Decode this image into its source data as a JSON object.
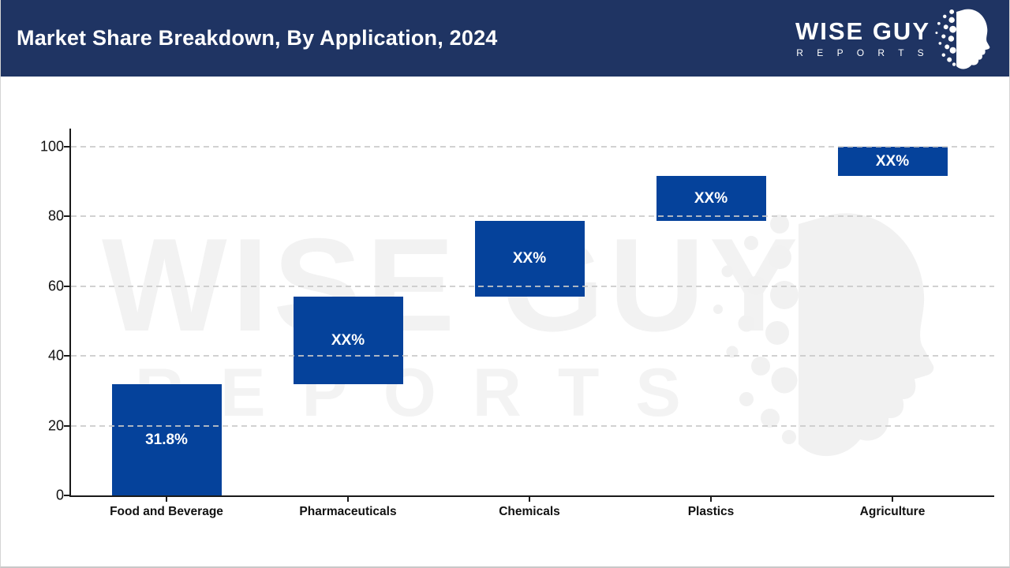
{
  "header": {
    "title": "Market Share Breakdown, By Application, 2024",
    "logo": {
      "line1": "WISE GUY",
      "line2": "R E P O R T S"
    }
  },
  "watermark": {
    "line1": "WISE GUY",
    "line2": "REPORTS"
  },
  "colors": {
    "header_bg": "#1F3463",
    "bar": "#05429B",
    "gridline": "#c9c9c9",
    "axis": "#1a1a1a",
    "bar_label": "#ffffff",
    "watermark": "#f2f2f2"
  },
  "chart_data": {
    "type": "bar",
    "subtype": "waterfall-floating-bars",
    "title": "Market Share Breakdown, By Application, 2024",
    "categories": [
      "Food and Beverage",
      "Pharmaceuticals",
      "Chemicals",
      "Plastics",
      "Agriculture"
    ],
    "series": [
      {
        "name": "Market share (cumulative segments, %)",
        "segments": [
          {
            "category": "Food and Beverage",
            "start": 0,
            "end": 31.8,
            "label": "31.8%"
          },
          {
            "category": "Pharmaceuticals",
            "start": 31.8,
            "end": 57.0,
            "label": "XX%"
          },
          {
            "category": "Chemicals",
            "start": 57.0,
            "end": 78.7,
            "label": "XX%"
          },
          {
            "category": "Plastics",
            "start": 78.7,
            "end": 91.6,
            "label": "XX%"
          },
          {
            "category": "Agriculture",
            "start": 91.6,
            "end": 100,
            "label": "XX%"
          }
        ]
      }
    ],
    "xlabel": "",
    "ylabel": "",
    "yticks": [
      0,
      20,
      40,
      60,
      80,
      100
    ],
    "ylim": [
      0,
      105.2
    ],
    "grid": "horizontal-dashed",
    "legend": "none"
  }
}
